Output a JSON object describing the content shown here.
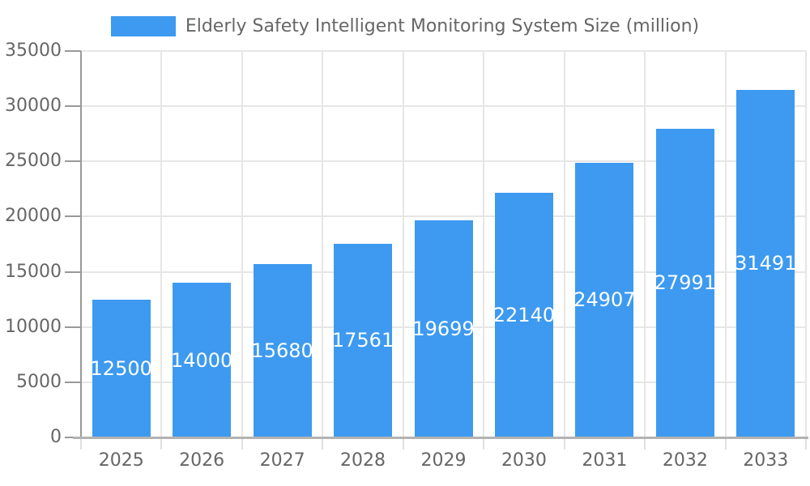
{
  "legend": {
    "label": "Elderly Safety Intelligent Monitoring System Size (million)"
  },
  "chart_data": {
    "type": "bar",
    "title": "Elderly Safety Intelligent Monitoring System Size (million)",
    "categories": [
      "2025",
      "2026",
      "2027",
      "2028",
      "2029",
      "2030",
      "2031",
      "2032",
      "2033"
    ],
    "values": [
      12500,
      14000,
      15680,
      17561,
      19699,
      22140,
      24907,
      27991,
      31491
    ],
    "xlabel": "",
    "ylabel": "",
    "ylim": [
      0,
      35000
    ],
    "y_ticks": [
      0,
      5000,
      10000,
      15000,
      20000,
      25000,
      30000,
      35000
    ],
    "grid": true,
    "legend_position": "top-center",
    "bar_color": "#3D9AF0",
    "value_label_color": "#ffffff",
    "axis_text_color": "#666666",
    "grid_color": "#e6e6e6",
    "y_axis_line_color": "#999999",
    "x_axis_line_color": "#b3b3b3",
    "x_tick_color": "#e0e0e0"
  }
}
